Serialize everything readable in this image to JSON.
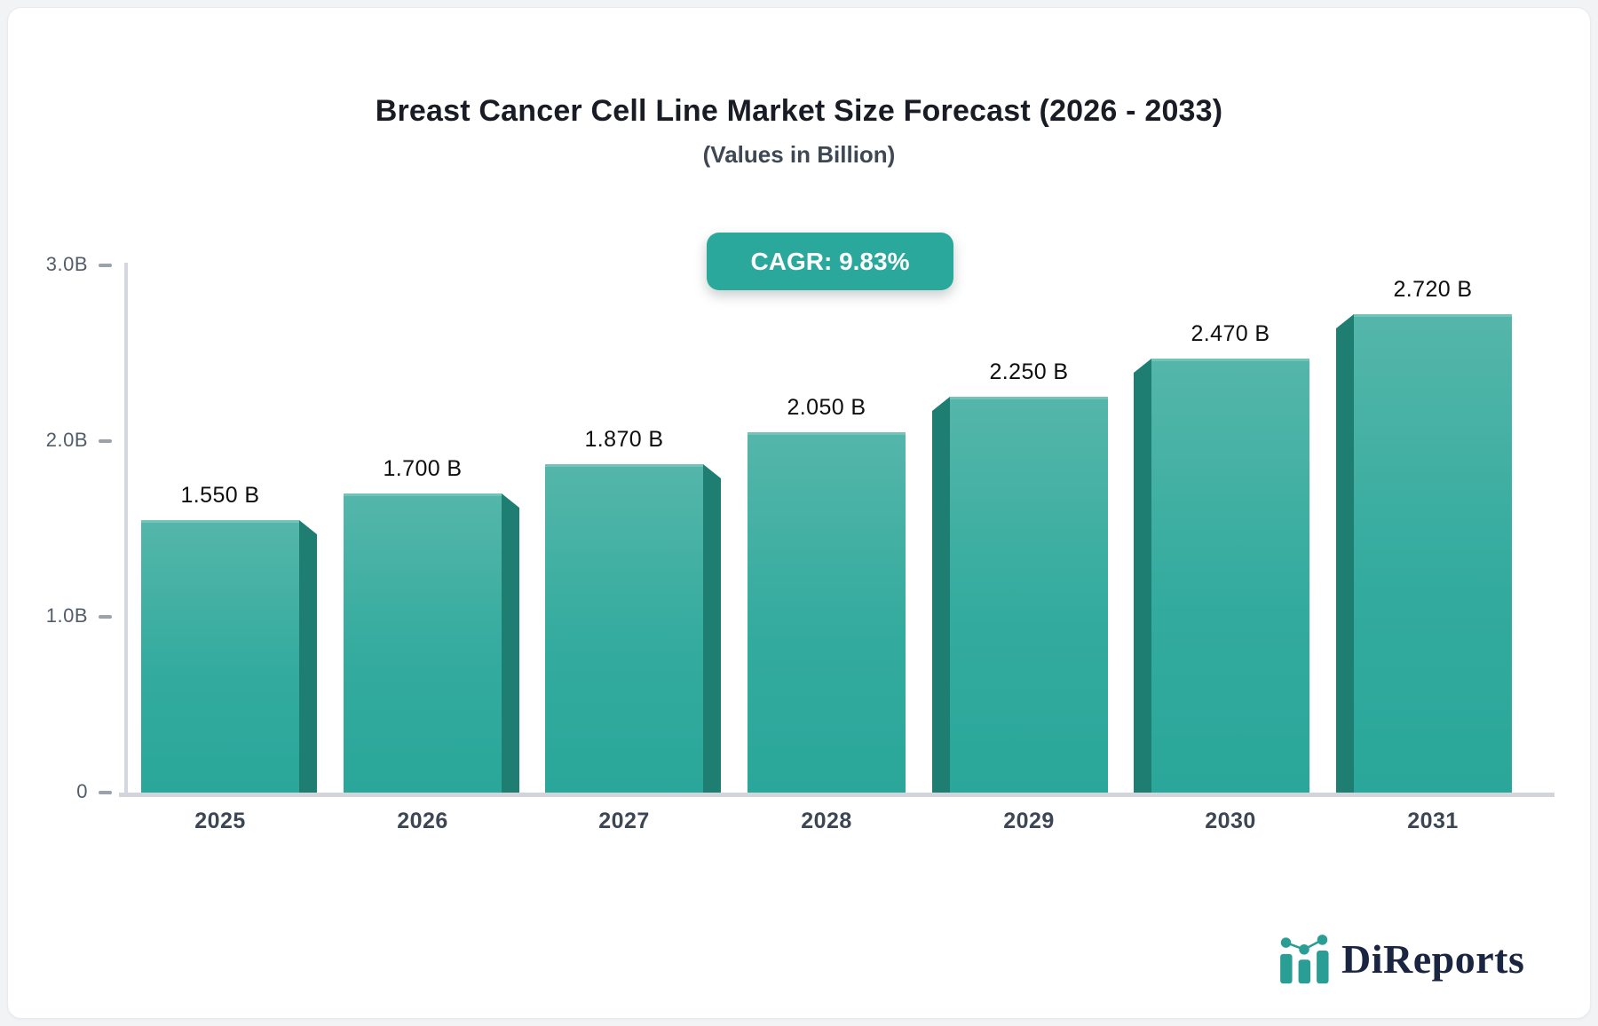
{
  "header": {
    "title": "Breast Cancer Cell Line Market Size Forecast (2026 - 2033)",
    "subtitle": "(Values in Billion)",
    "cagr_badge": "CAGR: 9.83%",
    "badge_color": "#2aa89c"
  },
  "chart_data": {
    "type": "bar",
    "title": "Breast Cancer Cell Line Market Size Forecast (2026 - 2033)",
    "subtitle": "(Values in Billion)",
    "annotation": "CAGR: 9.83%",
    "categories": [
      "2025",
      "2026",
      "2027",
      "2028",
      "2029",
      "2030",
      "2031"
    ],
    "values": [
      1.55,
      1.7,
      1.87,
      2.05,
      2.25,
      2.47,
      2.72
    ],
    "value_labels": [
      "1.550 B",
      "1.700 B",
      "1.870 B",
      "2.050 B",
      "2.250 B",
      "2.470 B",
      "2.720 B"
    ],
    "xlabel": "",
    "ylabel": "",
    "ylim": [
      0,
      3.0
    ],
    "y_ticks": [
      {
        "value": 0,
        "label": "0"
      },
      {
        "value": 1.0,
        "label": "1.0B"
      },
      {
        "value": 2.0,
        "label": "2.0B"
      },
      {
        "value": 3.0,
        "label": "3.0B"
      }
    ],
    "grid": false,
    "legend": false,
    "bar_style": "3d",
    "colors": {
      "bar_top": "#55b6aa",
      "bar_bottom": "#2aa79a",
      "bar_side": "#1f7e72",
      "axis": "#d4d8de",
      "tick": "#9aa2ac",
      "tick_label": "#525d6b",
      "value_label": "#0e0e10",
      "category_label": "#3c4654"
    }
  },
  "footer": {
    "brand": "DiReports",
    "brand_color": "#1a2641",
    "icon_color": "#2a9e94"
  }
}
